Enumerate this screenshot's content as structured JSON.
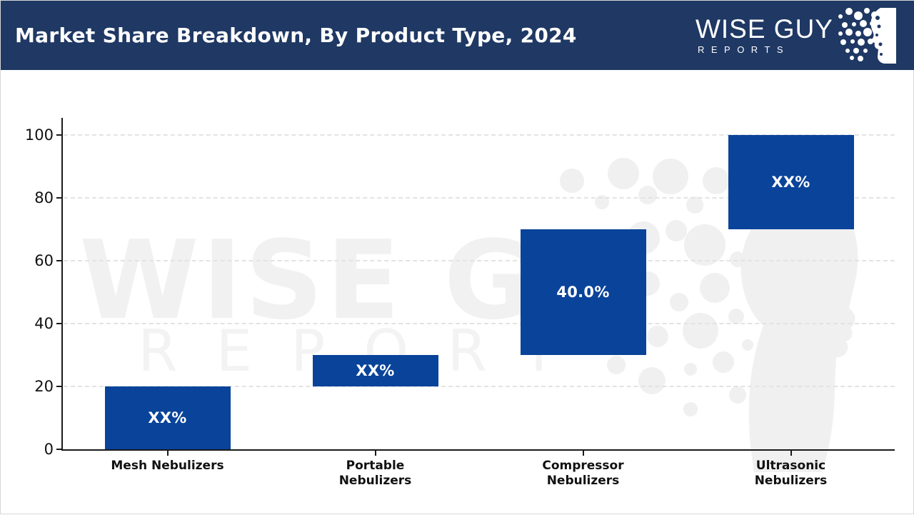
{
  "header": {
    "title": "Market Share Breakdown, By Product Type, 2024",
    "bg_color": "#1f3864",
    "logo": {
      "wordmark": "WISE GUY",
      "subtext": "REPORTS",
      "face_icon": "dotted-face-profile-icon"
    }
  },
  "watermark": {
    "wordmark": "WISE GU",
    "subtext": "REPORT",
    "face_icon": "dotted-face-profile-watermark"
  },
  "chart_data": {
    "type": "bar",
    "variant": "floating_segment_waterfall",
    "title": "Market Share Breakdown, By Product Type, 2024",
    "categories": [
      "Mesh Nebulizers",
      "Portable Nebulizers",
      "Compressor Nebulizers",
      "Ultrasonic Nebulizers"
    ],
    "category_label_lines": [
      [
        "Mesh Nebulizers"
      ],
      [
        "Portable",
        "Nebulizers"
      ],
      [
        "Compressor",
        "Nebulizers"
      ],
      [
        "Ultrasonic",
        "Nebulizers"
      ]
    ],
    "segments": [
      {
        "category": "Mesh Nebulizers",
        "from": 0,
        "to": 20,
        "label": "XX%"
      },
      {
        "category": "Portable Nebulizers",
        "from": 20,
        "to": 30,
        "label": "XX%"
      },
      {
        "category": "Compressor Nebulizers",
        "from": 30,
        "to": 70,
        "label": "40.0%"
      },
      {
        "category": "Ultrasonic Nebulizers",
        "from": 70,
        "to": 100,
        "label": "XX%"
      }
    ],
    "ylim": [
      0,
      100
    ],
    "yticks": [
      0,
      20,
      40,
      60,
      80,
      100
    ],
    "xlabel": "",
    "ylabel": "",
    "grid": "horizontal-dashed",
    "legend": "none",
    "colors": {
      "bar": "#09439a",
      "bar_label": "#ffffff",
      "axis": "#1a1a1a",
      "grid": "#e3e3e3",
      "tick_label": "#111111",
      "header_bg": "#1f3864",
      "watermark": "#f1f1f1"
    }
  }
}
